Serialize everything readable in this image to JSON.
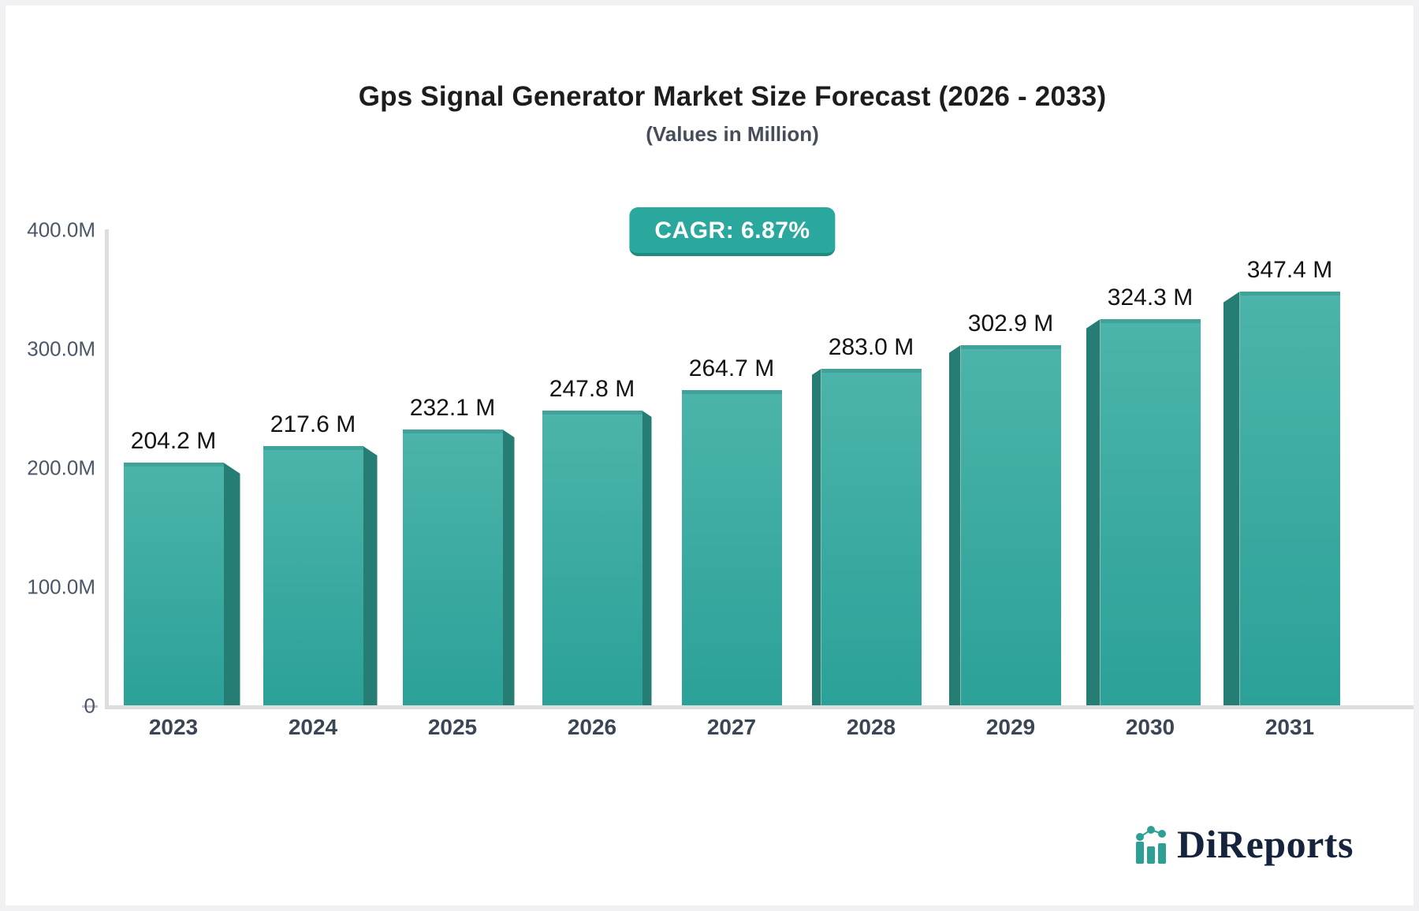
{
  "header": {
    "title": "Gps Signal Generator Market Size Forecast (2026 - 2033)",
    "subtitle": "(Values in Million)"
  },
  "badge": {
    "label": "CAGR: 6.87%"
  },
  "chart_data": {
    "type": "bar",
    "title": "Gps Signal Generator Market Size Forecast (2026 - 2033)",
    "subtitle": "(Values in Million)",
    "unit": "Million",
    "categories": [
      "2023",
      "2024",
      "2025",
      "2026",
      "2027",
      "2028",
      "2029",
      "2030",
      "2031"
    ],
    "values": [
      204.2,
      217.6,
      232.1,
      247.8,
      264.7,
      283.0,
      302.9,
      324.3,
      347.4
    ],
    "value_labels": [
      "204.2 M",
      "217.6 M",
      "232.1 M",
      "247.8 M",
      "264.7 M",
      "283.0 M",
      "302.9 M",
      "324.3 M",
      "347.4 M"
    ],
    "ylim": [
      0,
      400
    ],
    "y_ticks": [
      {
        "value": 400,
        "label": "400.0M"
      },
      {
        "value": 300,
        "label": "300.0M"
      },
      {
        "value": 200,
        "label": "200.0M"
      },
      {
        "value": 100,
        "label": "100.0M"
      },
      {
        "value": 0,
        "label": "0"
      }
    ],
    "grid": false,
    "legend": "none",
    "cagr": "6.87%",
    "colors": {
      "bar_top": "#4cb4aa",
      "bar_bottom": "#2ba198",
      "bar_side": "#267d74",
      "badge_bg": "#2aa89d",
      "axis_line": "#dcdde1"
    }
  },
  "watermark": {
    "brand": "DiReports"
  }
}
